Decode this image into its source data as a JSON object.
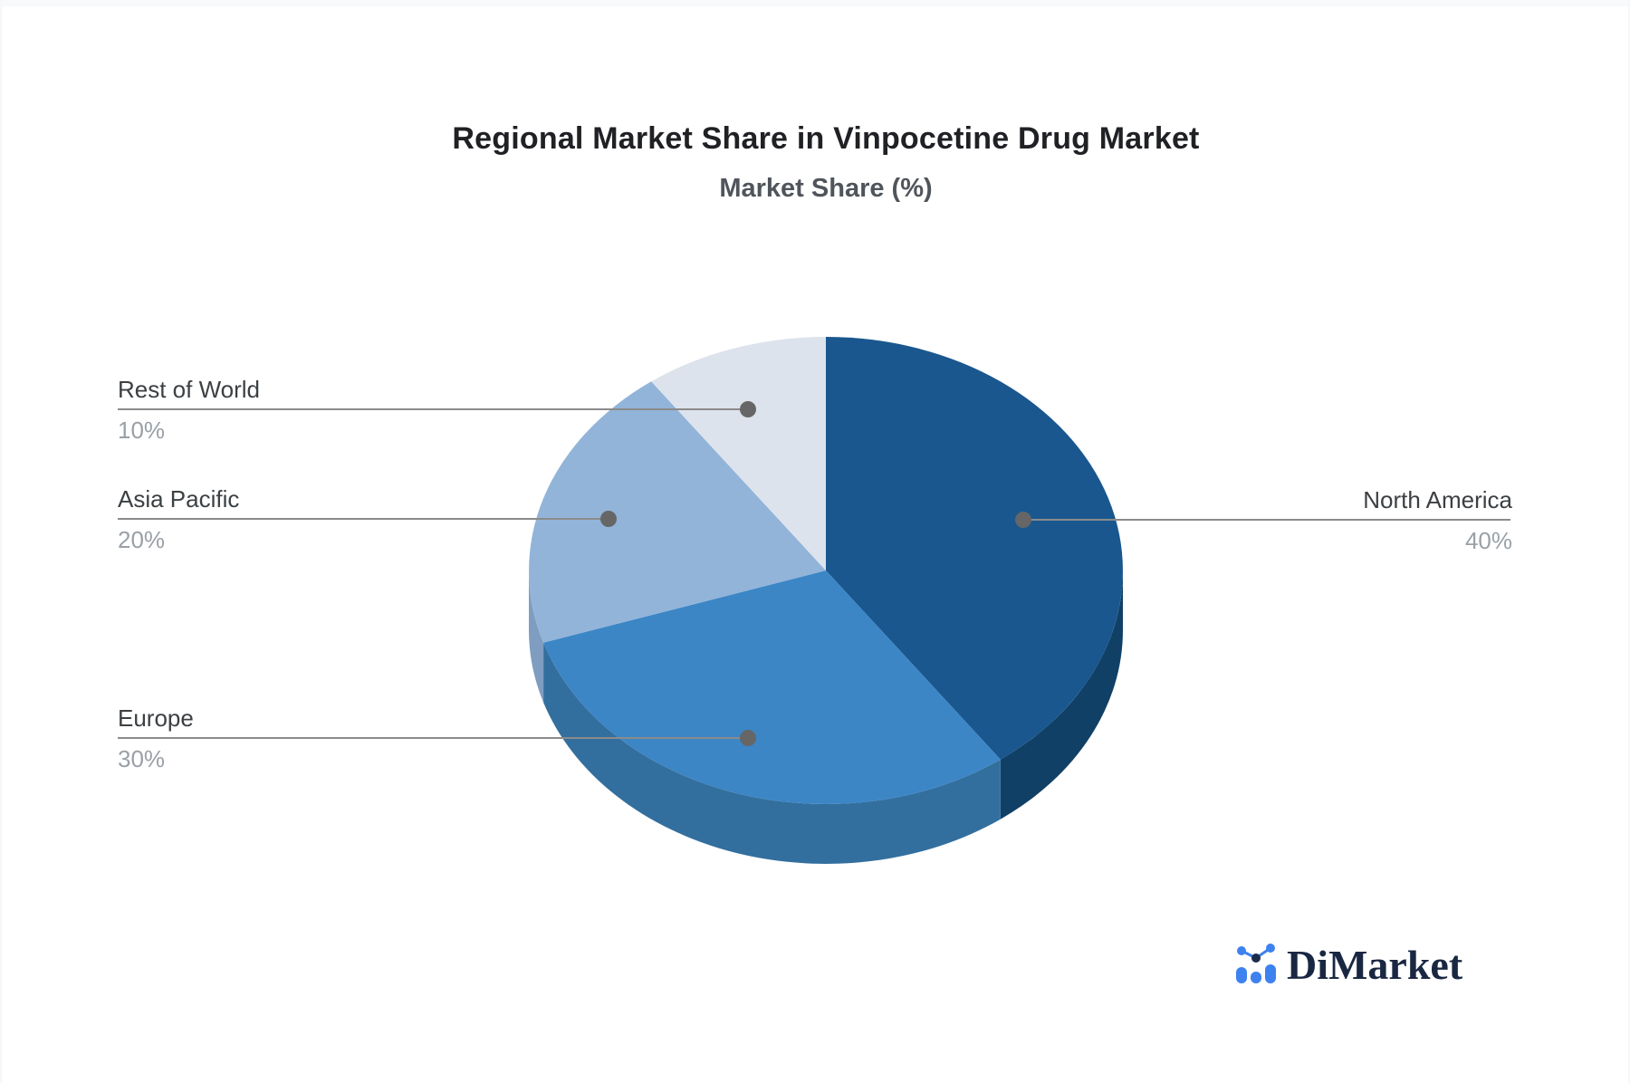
{
  "header": {
    "title": "Regional Market Share in Vinpocetine Drug Market",
    "subtitle": "Market Share (%)"
  },
  "slices": [
    {
      "name": "North America",
      "value": 40,
      "pct_label": "40%",
      "color": "#19578E",
      "side_color": "#114066"
    },
    {
      "name": "Europe",
      "value": 30,
      "pct_label": "30%",
      "color": "#3C86C6",
      "side_color": "#336F9E"
    },
    {
      "name": "Asia Pacific",
      "value": 20,
      "pct_label": "20%",
      "color": "#92B4D9",
      "side_color": "#7E9DC0"
    },
    {
      "name": "Rest of World",
      "value": 10,
      "pct_label": "10%",
      "color": "#DDE3ED",
      "side_color": "#B9C2D0"
    }
  ],
  "callouts": {
    "line_color": "#8B8B8B",
    "dot_color": "#666666"
  },
  "logo": {
    "text": "DiMarket",
    "icon_color": "#3D82EF",
    "icon_dark_dot_color": "#1D2B4A",
    "text_color": "#1A2742"
  },
  "chart_data": {
    "type": "pie",
    "title": "Regional Market Share in Vinpocetine Drug Market",
    "subtitle": "Market Share (%)",
    "categories": [
      "North America",
      "Europe",
      "Asia Pacific",
      "Rest of World"
    ],
    "values": [
      40,
      30,
      20,
      10
    ],
    "unit": "%",
    "start_angle_deg": 0,
    "direction": "clockwise",
    "style": "3d",
    "colors": [
      "#19578E",
      "#3C86C6",
      "#92B4D9",
      "#DDE3ED"
    ],
    "labels_position": "callout",
    "legend": "none",
    "background": "#FFFFFF"
  }
}
